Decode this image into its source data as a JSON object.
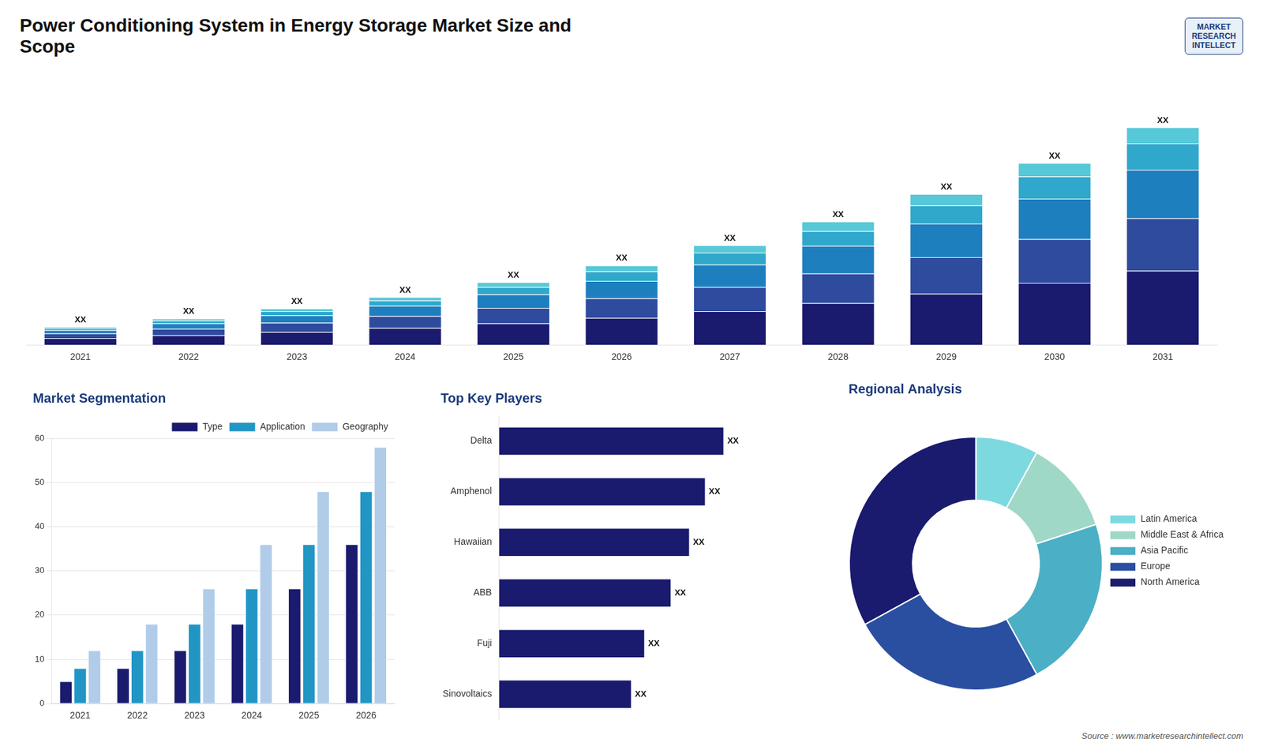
{
  "title": "Power Conditioning System in Energy Storage Market Size and\nScope",
  "annotations": [
    "MARKET\nRESEARCH\nINTELLECT",
    "Source : www.marketresearchintellect.com"
  ],
  "chart_data": [
    {
      "type": "bar",
      "stacked": true,
      "categories": [
        "2021",
        "2022",
        "2023",
        "2024",
        "2025",
        "2026",
        "2027",
        "2028",
        "2029",
        "2030",
        "2031"
      ],
      "series": [
        {
          "name": "North America",
          "color": "#1a1a6e",
          "values": [
            1,
            1.4,
            1.9,
            2.5,
            3.2,
            4.0,
            5.0,
            6.2,
            7.6,
            9.2,
            11.0
          ]
        },
        {
          "name": "Europe",
          "color": "#2e4b9e",
          "values": [
            0.7,
            1.0,
            1.4,
            1.8,
            2.3,
            2.9,
            3.6,
            4.4,
            5.4,
            6.5,
            7.8
          ]
        },
        {
          "name": "Asia Pacific",
          "color": "#1e7fbf",
          "values": [
            0.5,
            0.8,
            1.1,
            1.5,
            2.0,
            2.6,
            3.3,
            4.1,
            5.0,
            6.0,
            7.2
          ]
        },
        {
          "name": "Middle East & Africa",
          "color": "#2fa8cc",
          "values": [
            0.3,
            0.4,
            0.6,
            0.8,
            1.1,
            1.4,
            1.8,
            2.2,
            2.7,
            3.3,
            3.9
          ]
        },
        {
          "name": "Latin America",
          "color": "#56c8d8",
          "values": [
            0.2,
            0.3,
            0.4,
            0.5,
            0.7,
            0.9,
            1.1,
            1.4,
            1.7,
            2.0,
            2.4
          ]
        }
      ],
      "ylim": [
        0,
        38.114
      ],
      "tick_labels": "x",
      "grid": false,
      "annotations": [
        {
          "text": "XX",
          "x": "2021"
        },
        {
          "text": "XX",
          "x": "2022"
        },
        {
          "text": "XX",
          "x": "2023"
        },
        {
          "text": "XX",
          "x": "2024"
        },
        {
          "text": "XX",
          "x": "2025"
        },
        {
          "text": "XX",
          "x": "2026"
        },
        {
          "text": "XX",
          "x": "2027"
        },
        {
          "text": "XX",
          "x": "2028"
        },
        {
          "text": "XX",
          "x": "2029"
        },
        {
          "text": "XX",
          "x": "2030"
        },
        {
          "text": "XX",
          "x": "2031"
        }
      ]
    },
    {
      "type": "bar",
      "title": "Market Segmentation",
      "categories": [
        "2021",
        "2022",
        "2023",
        "2024",
        "2025",
        "2026"
      ],
      "series": [
        {
          "name": "Type",
          "color": "#1a1a6e",
          "values": [
            5,
            8,
            12,
            18,
            26,
            36
          ]
        },
        {
          "name": "Application",
          "color": "#2196c4",
          "values": [
            8,
            12,
            18,
            26,
            36,
            48
          ]
        },
        {
          "name": "Geography",
          "color": "#b0cce8",
          "values": [
            12,
            18,
            26,
            36,
            48,
            58
          ]
        }
      ],
      "ylim": [
        0,
        60
      ],
      "yticks": [
        0,
        10,
        20,
        30,
        40,
        50,
        60
      ],
      "grid": true,
      "legend": "top"
    },
    {
      "type": "bar",
      "orientation": "horizontal",
      "title": "Top Key Players",
      "categories": [
        "Delta",
        "Amphenol",
        "Hawaiian",
        "ABB",
        "Fuji",
        "Sinovoltaics"
      ],
      "values": [
        0.85,
        0.78,
        0.72,
        0.65,
        0.55,
        0.5
      ],
      "value_labels": [
        "XX",
        "XX",
        "XX",
        "XX",
        "XX",
        "XX"
      ],
      "data_labels": true,
      "color": "#1a1a6e",
      "xlim": [
        0,
        1.15
      ],
      "tick_labels": "y",
      "grid": false
    },
    {
      "type": "doughnut",
      "title": "Regional Analysis",
      "categories": [
        "Latin America",
        "Middle East & Africa",
        "Asia Pacific",
        "Europe",
        "North America"
      ],
      "values": [
        8,
        12,
        22,
        25,
        33
      ],
      "colors": [
        "#7dd9e0",
        "#a0d8c8",
        "#4bafc5",
        "#2a4fa0",
        "#1a1a6e"
      ],
      "legend": "right"
    }
  ]
}
